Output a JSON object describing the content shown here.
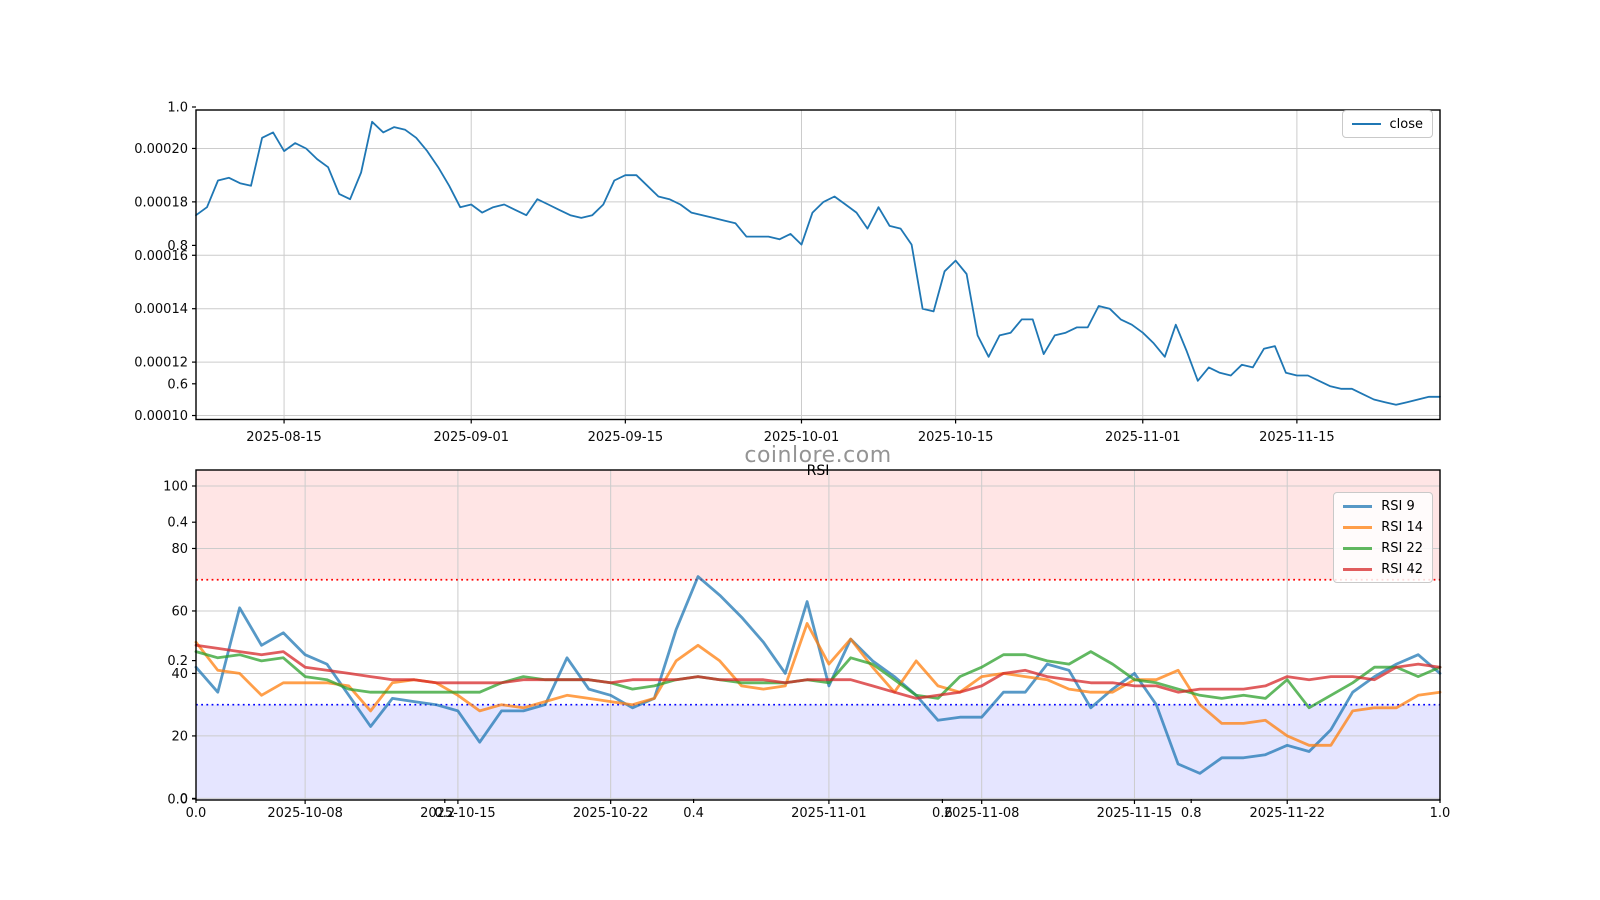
{
  "watermark": "coinlore.com",
  "colors": {
    "accent_blue": "#1f77b4",
    "accent_orange": "#ff7f0e",
    "accent_green": "#2ca02c",
    "accent_red": "#d62728",
    "grid": "#cccccc",
    "overbought_fill": "rgba(255,0,0,0.10)",
    "oversold_fill": "rgba(0,0,255,0.10)",
    "overbought_line": "#ff0000",
    "oversold_line": "#0000ff",
    "watermark_color": "#949494"
  },
  "hidden_axis": {
    "y_tick_labels": [
      "1.0",
      "0.8",
      "0.6",
      "0.4",
      "0.2",
      "0.0"
    ],
    "x_tick_labels": [
      "0.0",
      "0.2",
      "0.4",
      "0.6",
      "0.8",
      "1.0"
    ]
  },
  "chart_data": [
    {
      "type": "line",
      "title": "",
      "legend": [
        "close"
      ],
      "legend_position": "upper right",
      "grid": true,
      "x_start_date": "2025-08-07",
      "frequency": "daily",
      "x_ticks": [
        {
          "label": "2025-08-15",
          "day": 8
        },
        {
          "label": "2025-09-01",
          "day": 25
        },
        {
          "label": "2025-09-15",
          "day": 39
        },
        {
          "label": "2025-10-01",
          "day": 55
        },
        {
          "label": "2025-10-15",
          "day": 69
        },
        {
          "label": "2025-11-01",
          "day": 86
        },
        {
          "label": "2025-11-15",
          "day": 100
        }
      ],
      "y_ticks": [
        0.0002,
        0.00018,
        0.00016,
        0.00014,
        0.00012,
        0.0001
      ],
      "ylim": [
        9.851e-05,
        0.0002144
      ],
      "series": [
        {
          "name": "close",
          "color": "#1f77b4",
          "values": [
            0.000175,
            0.000178,
            0.000188,
            0.000189,
            0.000187,
            0.000186,
            0.000204,
            0.000206,
            0.000199,
            0.000202,
            0.0002,
            0.000196,
            0.000193,
            0.000183,
            0.000181,
            0.000191,
            0.00021,
            0.000206,
            0.000208,
            0.000207,
            0.000204,
            0.000199,
            0.000193,
            0.000186,
            0.000178,
            0.000179,
            0.000176,
            0.000178,
            0.000179,
            0.000177,
            0.000175,
            0.000181,
            0.000179,
            0.000177,
            0.000175,
            0.000174,
            0.000175,
            0.000179,
            0.000188,
            0.00019,
            0.00019,
            0.000186,
            0.000182,
            0.000181,
            0.000179,
            0.000176,
            0.000175,
            0.000174,
            0.000173,
            0.000172,
            0.000167,
            0.000167,
            0.000167,
            0.000166,
            0.000168,
            0.000164,
            0.000176,
            0.00018,
            0.000182,
            0.000179,
            0.000176,
            0.00017,
            0.000178,
            0.000171,
            0.00017,
            0.000164,
            0.00014,
            0.000139,
            0.000154,
            0.000158,
            0.000153,
            0.00013,
            0.000122,
            0.00013,
            0.000131,
            0.000136,
            0.000136,
            0.000123,
            0.00013,
            0.000131,
            0.000133,
            0.000133,
            0.000141,
            0.00014,
            0.000136,
            0.000134,
            0.000131,
            0.000127,
            0.000122,
            0.000134,
            0.000124,
            0.000113,
            0.000118,
            0.000116,
            0.000115,
            0.000119,
            0.000118,
            0.000125,
            0.000126,
            0.000116,
            0.000115,
            0.000115,
            0.000113,
            0.000111,
            0.00011,
            0.00011,
            0.000108,
            0.000106,
            0.000105,
            0.000104,
            0.000105,
            0.000106,
            0.000107,
            0.000107
          ]
        }
      ]
    },
    {
      "type": "line",
      "title": "RSI",
      "legend": [
        "RSI 9",
        "RSI 14",
        "RSI 22",
        "RSI 42"
      ],
      "legend_position": "upper right",
      "grid": true,
      "x_start_date": "2025-10-03",
      "frequency": "daily",
      "overbought_level": 70,
      "oversold_level": 30,
      "x_ticks": [
        {
          "label": "2025-10-08",
          "day": 5
        },
        {
          "label": "2025-10-15",
          "day": 12
        },
        {
          "label": "2025-10-22",
          "day": 19
        },
        {
          "label": "2025-11-01",
          "day": 29
        },
        {
          "label": "2025-11-08",
          "day": 36
        },
        {
          "label": "2025-11-15",
          "day": 43
        },
        {
          "label": "2025-11-22",
          "day": 50
        }
      ],
      "y_ticks": [
        100,
        80,
        60,
        40,
        20,
        0
      ],
      "ylim": [
        0,
        105
      ],
      "series": [
        {
          "name": "RSI 9",
          "color": "#1f77b4",
          "values": [
            42,
            34,
            61,
            49,
            53,
            46,
            43,
            33,
            23,
            32,
            31,
            30,
            28,
            18,
            28,
            28,
            30,
            45,
            35,
            33,
            29,
            32,
            54,
            71,
            65,
            58,
            50,
            40,
            63,
            36,
            51,
            44,
            39,
            33,
            25,
            26,
            26,
            34,
            34,
            43,
            41,
            29,
            35,
            40,
            30,
            11,
            8,
            13,
            13,
            14,
            17,
            15,
            22,
            34,
            39,
            43,
            46,
            40
          ]
        },
        {
          "name": "RSI 14",
          "color": "#ff7f0e",
          "values": [
            50,
            41,
            40,
            33,
            37,
            37,
            37,
            36,
            28,
            37,
            38,
            37,
            33,
            28,
            30,
            29,
            31,
            33,
            32,
            31,
            30,
            32,
            44,
            49,
            44,
            36,
            35,
            36,
            56,
            43,
            51,
            42,
            34,
            44,
            36,
            34,
            39,
            40,
            39,
            38,
            35,
            34,
            34,
            38,
            38,
            41,
            30,
            24,
            24,
            25,
            20,
            17,
            17,
            28,
            29,
            29,
            33,
            34
          ]
        },
        {
          "name": "RSI 22",
          "color": "#2ca02c",
          "values": [
            47,
            45,
            46,
            44,
            45,
            39,
            38,
            35,
            34,
            34,
            34,
            34,
            34,
            34,
            37,
            39,
            38,
            38,
            38,
            37,
            35,
            36,
            38,
            39,
            38,
            37,
            37,
            37,
            38,
            37,
            45,
            43,
            38,
            33,
            32,
            39,
            42,
            46,
            46,
            44,
            43,
            47,
            43,
            38,
            37,
            35,
            33,
            32,
            33,
            32,
            38,
            29,
            33,
            37,
            42,
            42,
            39,
            42
          ]
        },
        {
          "name": "RSI 42",
          "color": "#d62728",
          "values": [
            49,
            48,
            47,
            46,
            47,
            42,
            41,
            40,
            39,
            38,
            38,
            37,
            37,
            37,
            37,
            38,
            38,
            38,
            38,
            37,
            38,
            38,
            38,
            39,
            38,
            38,
            38,
            37,
            38,
            38,
            38,
            36,
            34,
            32,
            33,
            34,
            36,
            40,
            41,
            39,
            38,
            37,
            37,
            36,
            36,
            34,
            35,
            35,
            35,
            36,
            39,
            38,
            39,
            39,
            38,
            42,
            43,
            42
          ]
        }
      ]
    }
  ]
}
